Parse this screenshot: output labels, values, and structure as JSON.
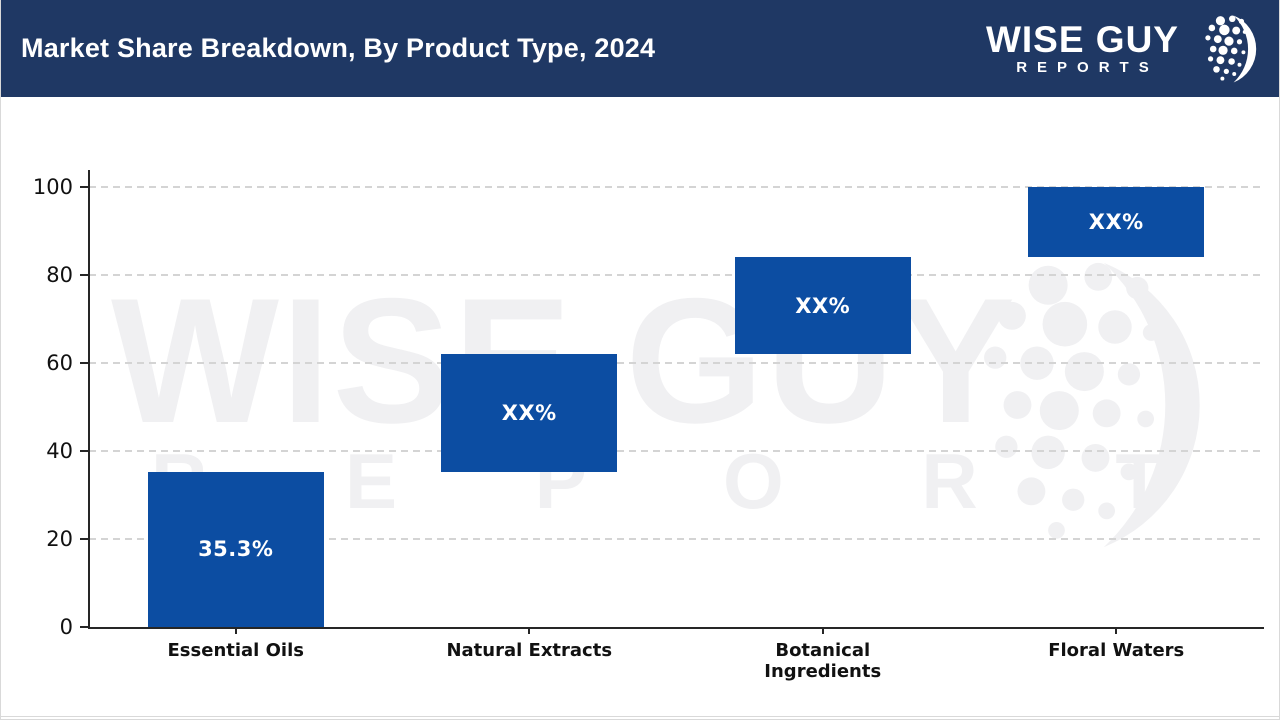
{
  "header": {
    "title": "Market Share Breakdown, By Product Type, 2024",
    "brand": {
      "line1": "WISE GUY",
      "line2": "REPORTS"
    }
  },
  "watermark": {
    "line1": "WISE GUY",
    "line2": "R E P O R T S"
  },
  "colors": {
    "header_bg": "#1f3864",
    "bar": "#0c4da2",
    "bar_label": "#ffffff",
    "gridline": "#d4d4d4",
    "axis": "#262626",
    "watermark": "#f0f0f2"
  },
  "chart_data": {
    "type": "bar",
    "subtype": "waterfall-stacked-share",
    "title": "Market Share Breakdown, By Product Type, 2024",
    "categories": [
      "Essential Oils",
      "Natural Extracts",
      "Botanical Ingredients",
      "Floral Waters"
    ],
    "segments": [
      {
        "category": "Essential Oils",
        "start": 0,
        "end": 35.3,
        "label": "35.3%"
      },
      {
        "category": "Natural Extracts",
        "start": 35.3,
        "end": 62,
        "label": "XX%"
      },
      {
        "category": "Botanical Ingredients",
        "start": 62,
        "end": 84,
        "label": "XX%"
      },
      {
        "category": "Floral Waters",
        "start": 84,
        "end": 100,
        "label": "XX%"
      }
    ],
    "xlabel": "",
    "ylabel": "",
    "ylim": [
      0,
      100
    ],
    "yticks": [
      0,
      20,
      40,
      60,
      80,
      100
    ],
    "grid": "horizontal-dashed",
    "legend": null
  }
}
